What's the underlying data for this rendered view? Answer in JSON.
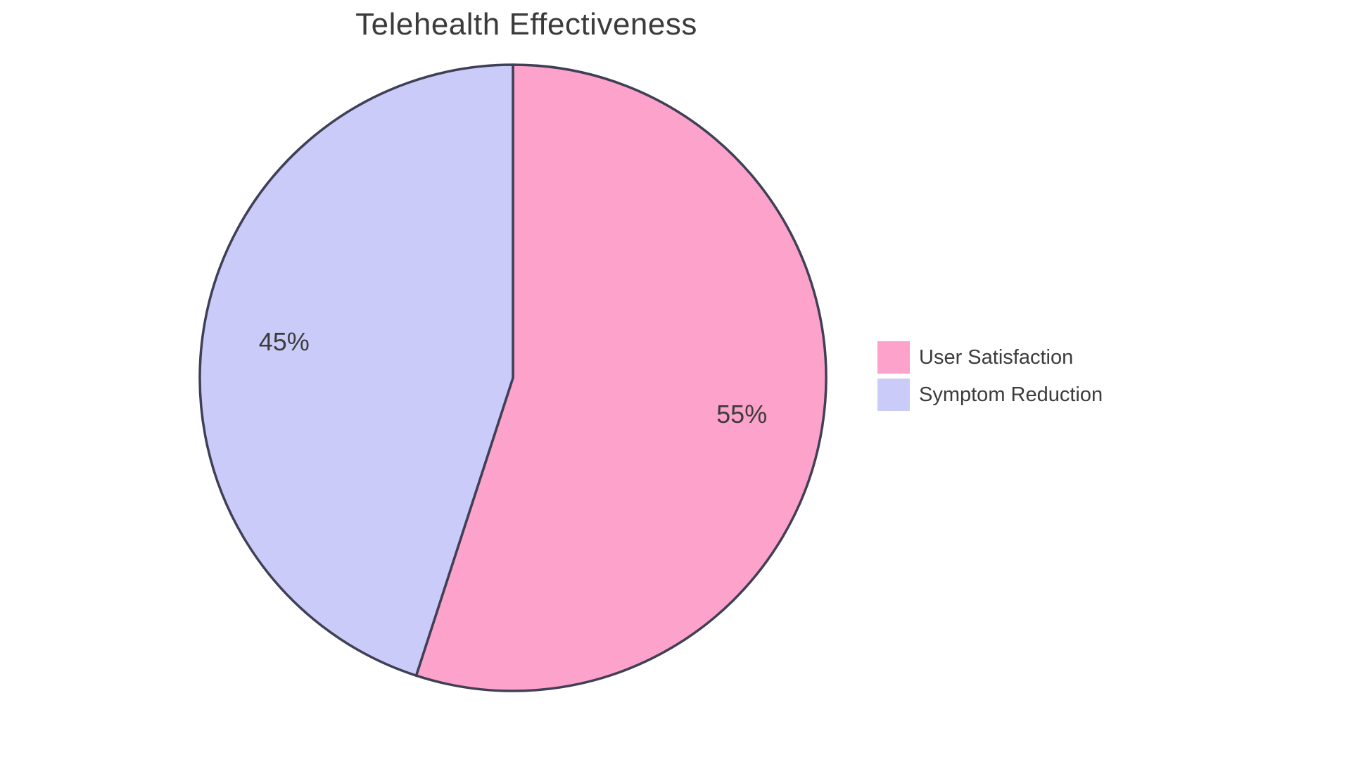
{
  "chart_data": {
    "type": "pie",
    "title": "Telehealth Effectiveness",
    "slices": [
      {
        "label": "User Satisfaction",
        "value": 55,
        "pct_label": "55%",
        "color": "#FCA2CB"
      },
      {
        "label": "Symptom Reduction",
        "value": 45,
        "pct_label": "45%",
        "color": "#CACBF8"
      }
    ],
    "start_angle_deg": 0,
    "direction": "clockwise",
    "legend_position": "right",
    "slice_stroke_color": "#3F3F56",
    "slice_stroke_width": 3.5,
    "label_color": "#3C3C3C",
    "title_color": "#3B3B3B",
    "background": "#FFFFFF"
  }
}
